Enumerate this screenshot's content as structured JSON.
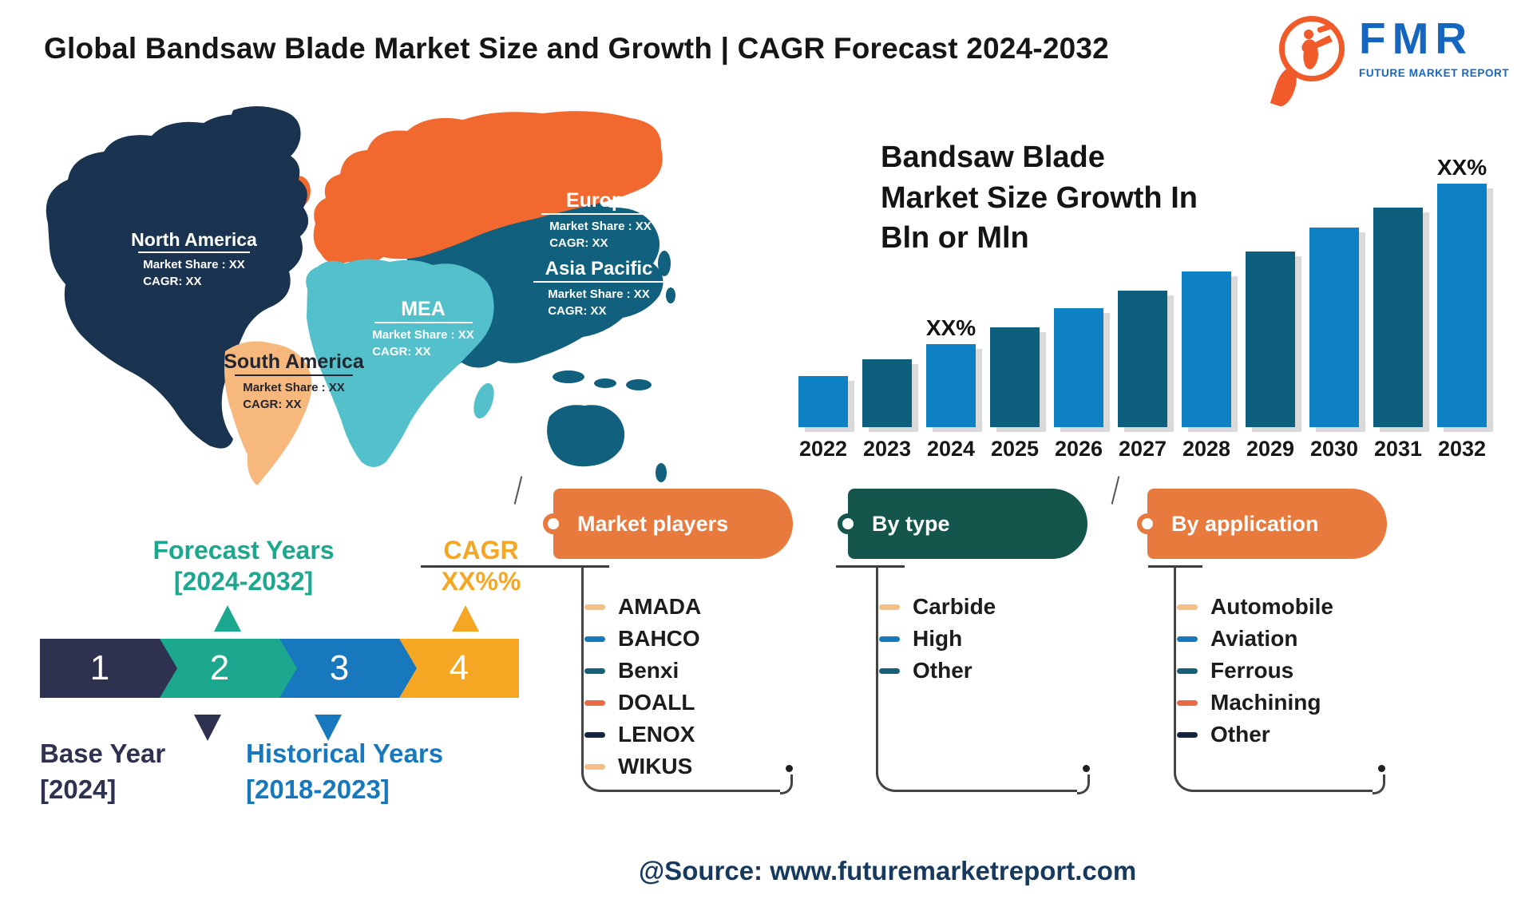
{
  "header": {
    "title": "Global Bandsaw Blade  Market Size and Growth | CAGR Forecast 2024-2032",
    "logo": {
      "abbr": "FMR",
      "tagline": "FUTURE MARKET REPORT",
      "brand_orange": "#f15b2a",
      "brand_blue": "#1566c0"
    }
  },
  "map": {
    "regions": [
      {
        "name": "North America",
        "market_share": "Market Share : XX",
        "cagr": "CAGR: XX",
        "color": "#1a3350"
      },
      {
        "name": "South America",
        "market_share": "Market Share : XX",
        "cagr": "CAGR: XX",
        "color": "#f6b87d"
      },
      {
        "name": "Europe",
        "market_share": "Market Share : XX",
        "cagr": "CAGR: XX",
        "color": "#f2692f"
      },
      {
        "name": "MEA",
        "market_share": "Market Share : XX",
        "cagr": "CAGR: XX",
        "color": "#54c0cc"
      },
      {
        "name": "Asia Pacific",
        "market_share": "Market Share : XX",
        "cagr": "CAGR: XX",
        "color": "#11607e"
      }
    ]
  },
  "chart_data": {
    "type": "bar",
    "title": "Bandsaw Blade\nMarket Size Growth In\nBln or Mln",
    "categories": [
      "2022",
      "2023",
      "2024",
      "2025",
      "2026",
      "2027",
      "2028",
      "2029",
      "2030",
      "2031",
      "2032"
    ],
    "values": [
      21,
      28,
      34,
      41,
      49,
      56,
      64,
      72,
      82,
      90,
      100
    ],
    "values_note": "relative bar heights (% of 2032 bar); actual figures shown only as XX placeholders",
    "annotations": [
      {
        "category": "2024",
        "label": "XX%"
      },
      {
        "category": "2032",
        "label": "XX%"
      }
    ],
    "bar_colors_alternating": [
      "#0e81c4",
      "#0d5f7d"
    ],
    "xlabel": "",
    "ylabel": "",
    "grid": false,
    "legend": false
  },
  "timeline": {
    "segments": [
      {
        "number": "1",
        "color": "#2e3150"
      },
      {
        "number": "2",
        "color": "#1ca78f"
      },
      {
        "number": "3",
        "color": "#1878be"
      },
      {
        "number": "4",
        "color": "#f5a623"
      }
    ],
    "forecast": {
      "line1": "Forecast Years",
      "line2": "[2024-2032]",
      "color": "#1ca78f"
    },
    "cagr": {
      "line1": "CAGR",
      "line2": "XX%%",
      "color": "#f5a623"
    },
    "base": {
      "line1": "Base Year",
      "line2": "[2024]",
      "color": "#2e3150"
    },
    "historical": {
      "line1": "Historical Years",
      "line2": "[2018-2023]",
      "color": "#1878be"
    }
  },
  "sections": [
    {
      "title": "Market players",
      "pill_color": "#e87a3e",
      "items": [
        {
          "label": "AMADA",
          "color": "#f6bd85"
        },
        {
          "label": "BAHCO",
          "color": "#1878be"
        },
        {
          "label": "Benxi",
          "color": "#16607a"
        },
        {
          "label": "DOALL",
          "color": "#e86a46"
        },
        {
          "label": "LENOX",
          "color": "#12263f"
        },
        {
          "label": "WIKUS",
          "color": "#f6bd85"
        }
      ]
    },
    {
      "title": "By type",
      "pill_color": "#15564c",
      "items": [
        {
          "label": "Carbide",
          "color": "#f6bd85"
        },
        {
          "label": "High",
          "color": "#1878be"
        },
        {
          "label": "Other",
          "color": "#16607a"
        }
      ]
    },
    {
      "title": "By application",
      "pill_color": "#e87a3e",
      "items": [
        {
          "label": "Automobile",
          "color": "#f6bd85"
        },
        {
          "label": "Aviation",
          "color": "#1878be"
        },
        {
          "label": "Ferrous",
          "color": "#16607a"
        },
        {
          "label": "Machining",
          "color": "#e86a46"
        },
        {
          "label": "Other",
          "color": "#12263f"
        }
      ]
    }
  ],
  "footer": {
    "source": "@Source: www.futuremarketreport.com"
  }
}
